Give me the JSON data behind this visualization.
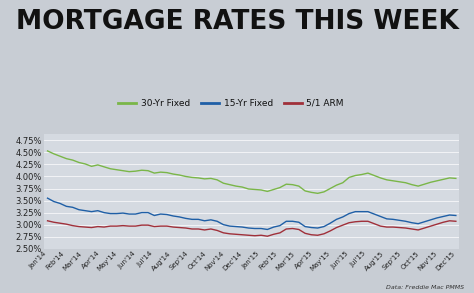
{
  "title": "MORTGAGE RATES THIS WEEK",
  "title_fontsize": 19,
  "title_fontweight": "bold",
  "source_text": "Data: Freddie Mac PMMS",
  "ylim": [
    2.5,
    4.875
  ],
  "yticks": [
    2.5,
    2.75,
    3.0,
    3.25,
    3.5,
    3.75,
    4.0,
    4.25,
    4.5,
    4.75
  ],
  "xtick_labels": [
    "Jan'14",
    "Feb'14",
    "Mar'14",
    "Apr'14",
    "May'14",
    "Jun'14",
    "Jul'14",
    "Aug'14",
    "Sep'14",
    "Oct'14",
    "Nov'14",
    "Dec'14",
    "Jan'15",
    "Feb'15",
    "Mar'15",
    "Apr'15",
    "May'15",
    "Jun'15",
    "Jul'15",
    "Aug'15",
    "Sep'15",
    "Oct'15",
    "Nov'15",
    "Dec'15"
  ],
  "line_30yr": [
    4.53,
    4.47,
    4.42,
    4.37,
    4.34,
    4.29,
    4.26,
    4.21,
    4.24,
    4.2,
    4.16,
    4.14,
    4.12,
    4.1,
    4.11,
    4.13,
    4.12,
    4.07,
    4.09,
    4.08,
    4.05,
    4.03,
    4.0,
    3.98,
    3.97,
    3.95,
    3.96,
    3.93,
    3.86,
    3.83,
    3.8,
    3.78,
    3.74,
    3.73,
    3.72,
    3.69,
    3.73,
    3.77,
    3.84,
    3.83,
    3.8,
    3.7,
    3.67,
    3.65,
    3.68,
    3.75,
    3.82,
    3.87,
    3.98,
    4.02,
    4.04,
    4.07,
    4.02,
    3.97,
    3.93,
    3.91,
    3.89,
    3.87,
    3.83,
    3.8,
    3.84,
    3.88,
    3.91,
    3.94,
    3.97,
    3.96
  ],
  "line_15yr": [
    3.55,
    3.48,
    3.44,
    3.38,
    3.36,
    3.31,
    3.29,
    3.27,
    3.29,
    3.25,
    3.23,
    3.23,
    3.24,
    3.22,
    3.22,
    3.25,
    3.25,
    3.19,
    3.22,
    3.21,
    3.18,
    3.16,
    3.13,
    3.11,
    3.11,
    3.08,
    3.1,
    3.07,
    3.0,
    2.97,
    2.96,
    2.95,
    2.93,
    2.92,
    2.92,
    2.9,
    2.95,
    2.98,
    3.07,
    3.07,
    3.05,
    2.96,
    2.94,
    2.93,
    2.96,
    3.03,
    3.11,
    3.16,
    3.23,
    3.27,
    3.27,
    3.27,
    3.22,
    3.17,
    3.12,
    3.11,
    3.09,
    3.07,
    3.04,
    3.02,
    3.06,
    3.1,
    3.14,
    3.17,
    3.2,
    3.19
  ],
  "line_arm": [
    3.08,
    3.05,
    3.03,
    3.01,
    2.98,
    2.96,
    2.95,
    2.94,
    2.96,
    2.95,
    2.97,
    2.97,
    2.98,
    2.97,
    2.97,
    2.99,
    2.99,
    2.96,
    2.97,
    2.97,
    2.95,
    2.94,
    2.93,
    2.91,
    2.91,
    2.89,
    2.91,
    2.88,
    2.83,
    2.81,
    2.8,
    2.79,
    2.78,
    2.77,
    2.78,
    2.76,
    2.8,
    2.83,
    2.91,
    2.92,
    2.9,
    2.82,
    2.79,
    2.78,
    2.81,
    2.87,
    2.94,
    2.99,
    3.04,
    3.06,
    3.07,
    3.07,
    3.02,
    2.97,
    2.95,
    2.95,
    2.94,
    2.93,
    2.91,
    2.89,
    2.93,
    2.97,
    3.01,
    3.05,
    3.08,
    3.07
  ],
  "color_30yr": "#7ab648",
  "color_15yr": "#1f5fa6",
  "color_arm": "#a0303a",
  "legend_labels": [
    "30-Yr Fixed",
    "15-Yr Fixed",
    "5/1 ARM"
  ],
  "fig_bg": "#c8cdd4",
  "ax_bg": "#d8dde4"
}
